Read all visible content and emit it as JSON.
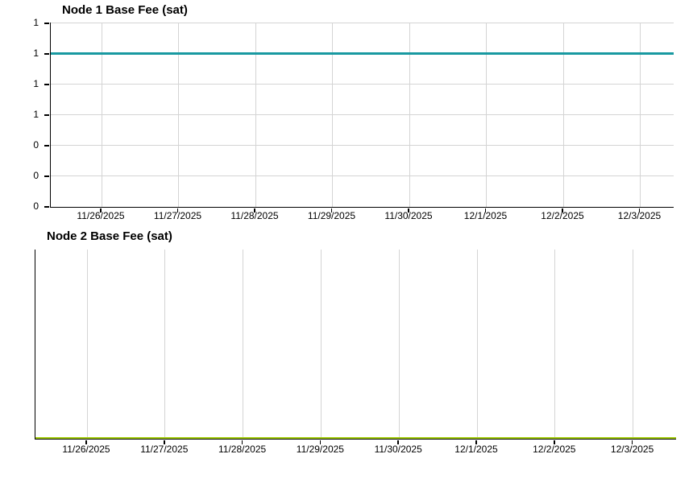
{
  "page": {
    "background": "#ffffff"
  },
  "colors": {
    "axis": "#000000",
    "gridline": "#d4d4d4",
    "tick_label": "#000000",
    "title": "#000000",
    "node1_line": "#1899a1",
    "node2_line": "#a6cf14"
  },
  "chart_data": [
    {
      "type": "line",
      "title": "Node 1 Base Fee (sat)",
      "xlabel": "",
      "ylabel": "",
      "x_tick_labels": [
        "11/26/2025",
        "11/27/2025",
        "11/28/2025",
        "11/29/2025",
        "11/30/2025",
        "12/1/2025",
        "12/2/2025",
        "12/3/2025"
      ],
      "y_tick_labels": [
        "1",
        "1",
        "1",
        "1",
        "0",
        "0",
        "0"
      ],
      "y_tick_values": [
        1.2,
        1.0,
        0.8,
        0.6,
        0.4,
        0.2,
        0.0
      ],
      "ylim": [
        0,
        1.2
      ],
      "grid": {
        "horizontal": true,
        "vertical": true
      },
      "legend": "none",
      "series": [
        {
          "name": "Node 1 base fee",
          "constant_value": 1,
          "color": "#1899a1",
          "thickness": 3
        }
      ]
    },
    {
      "type": "line",
      "title": "Node 2 Base Fee (sat)",
      "xlabel": "",
      "ylabel": "",
      "x_tick_labels": [
        "11/26/2025",
        "11/27/2025",
        "11/28/2025",
        "11/29/2025",
        "11/30/2025",
        "12/1/2025",
        "12/2/2025",
        "12/3/2025"
      ],
      "y_tick_labels": [],
      "y_tick_values": [],
      "ylim": [
        0,
        1
      ],
      "grid": {
        "horizontal": false,
        "vertical": true
      },
      "legend": "none",
      "series": [
        {
          "name": "Node 2 base fee",
          "constant_value": 0,
          "color": "#a6cf14",
          "thickness": 2
        }
      ]
    }
  ]
}
